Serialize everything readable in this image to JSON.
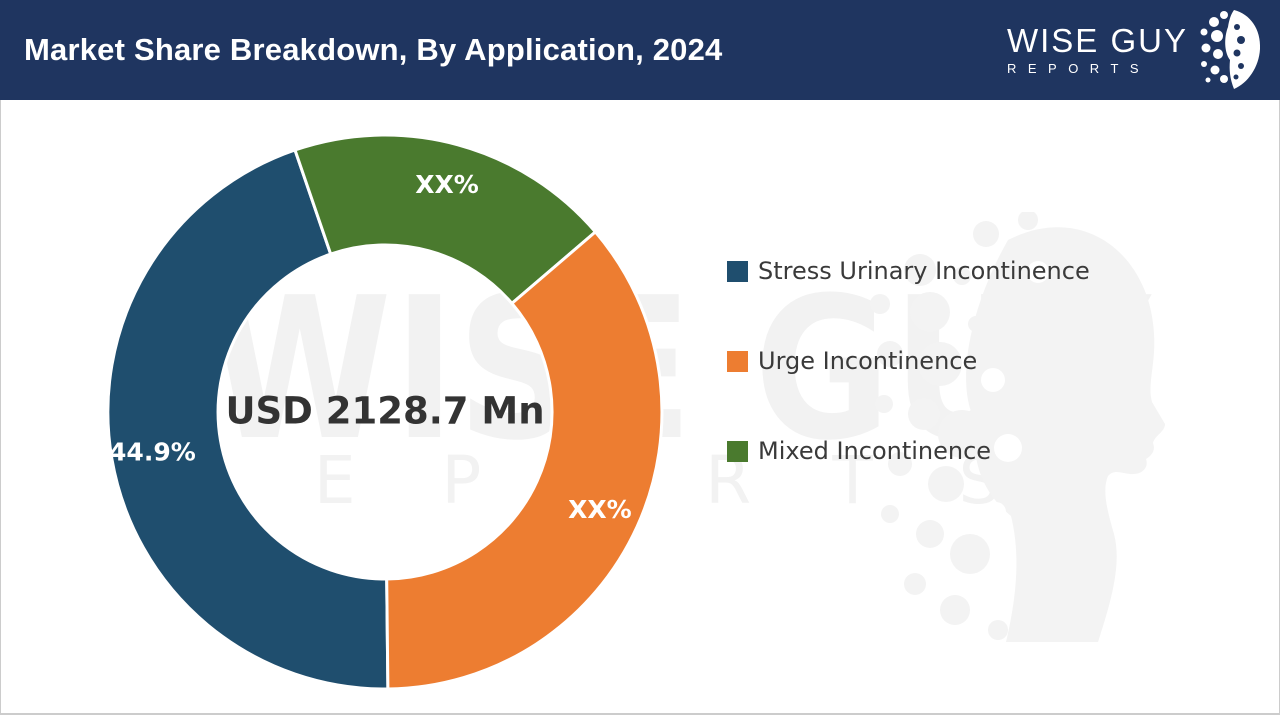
{
  "header": {
    "title": "Market Share Breakdown, By Application, 2024",
    "bg_color": "#1F3560",
    "logo": {
      "line1": "WISE GUY",
      "line2": "REPORTS"
    }
  },
  "watermark": {
    "line1": "WISE GUY",
    "line2": "REPORTS"
  },
  "chart_data": {
    "type": "pie",
    "subtype": "donut",
    "title": "Market Share Breakdown, By Application, 2024",
    "center_label": "USD 2128.7 Mn",
    "start_angle_deg": 89.4,
    "direction": "clockwise",
    "draw_order": [
      0,
      2,
      1
    ],
    "legend_position": "right",
    "segments": [
      {
        "label": "Stress Urinary Incontinence",
        "value_pct": 44.9,
        "display_label": "44.9%",
        "color": "#1F4E6E"
      },
      {
        "label": "Urge Incontinence",
        "value_pct": 36.1,
        "display_label": "XX%",
        "color": "#ED7D31"
      },
      {
        "label": "Mixed Incontinence",
        "value_pct": 19.0,
        "display_label": "XX%",
        "color": "#4A7A2E"
      }
    ]
  },
  "colors": {
    "header_navy": "#1F3560",
    "segment_label_text": "#FFFFFF",
    "center_text": "#333333",
    "legend_text": "#3A3A3A",
    "watermark_gray": "#F2F2F2",
    "frame_gray": "#CCCCCC"
  }
}
